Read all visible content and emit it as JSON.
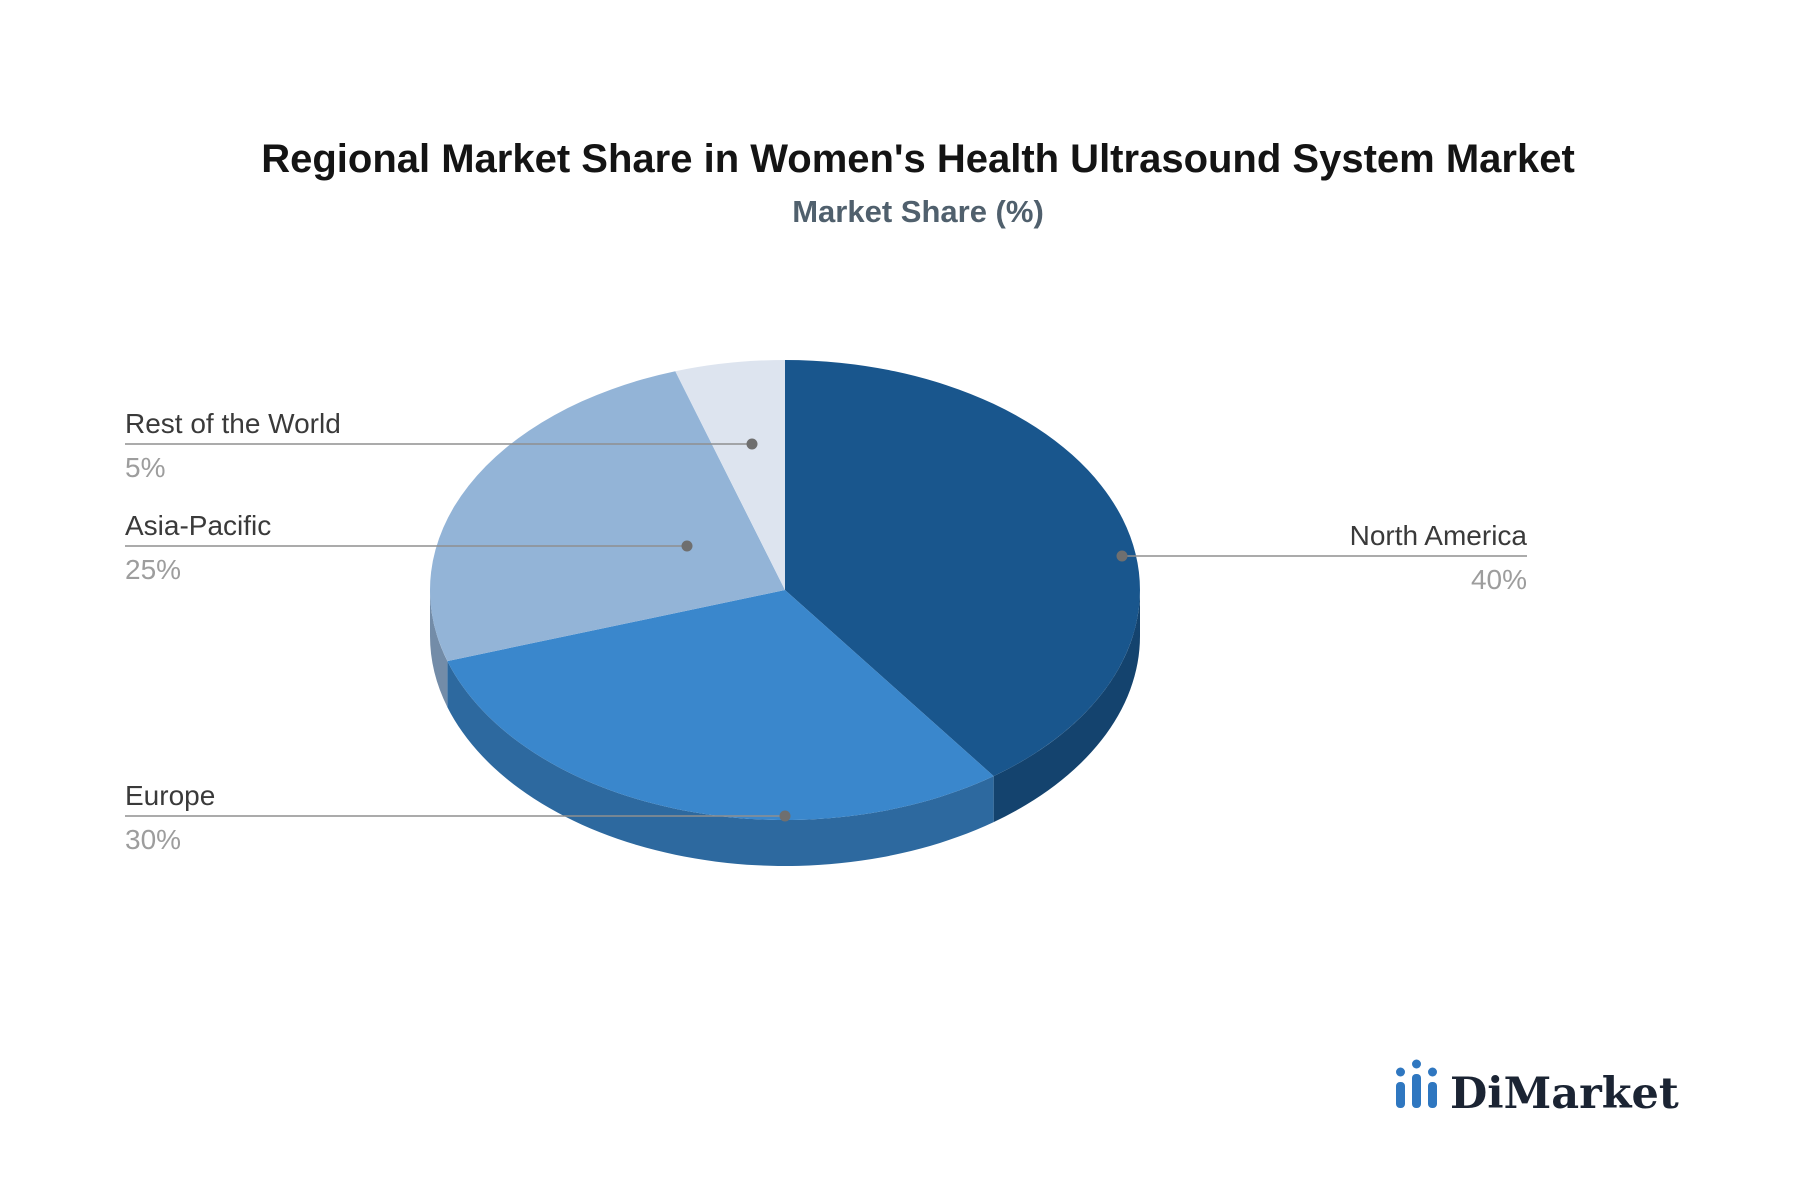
{
  "chart_data": {
    "type": "pie",
    "style": "3d-pie",
    "title": "Regional Market Share in Women's Health Ultrasound System Market",
    "subtitle": "Market Share (%)",
    "unit": "%",
    "labels": [
      "North America",
      "Europe",
      "Asia-Pacific",
      "Rest of the World"
    ],
    "values": [
      40,
      30,
      25,
      5
    ],
    "colors": [
      "#19568d",
      "#3a87cc",
      "#93b4d7",
      "#dde4ef"
    ],
    "start_angle": "12-o'clock",
    "direction": "clockwise",
    "legend_position": "none",
    "label_style": "leader-lines-with-percent",
    "leader_line_color": "#8f8f8f",
    "label_text_color": "#3a3a3a",
    "value_text_color": "#9d9d9d"
  },
  "logo": {
    "text": "DiMarket",
    "icon": "bar-chart-icon",
    "icon_color": "#2f77c0"
  }
}
